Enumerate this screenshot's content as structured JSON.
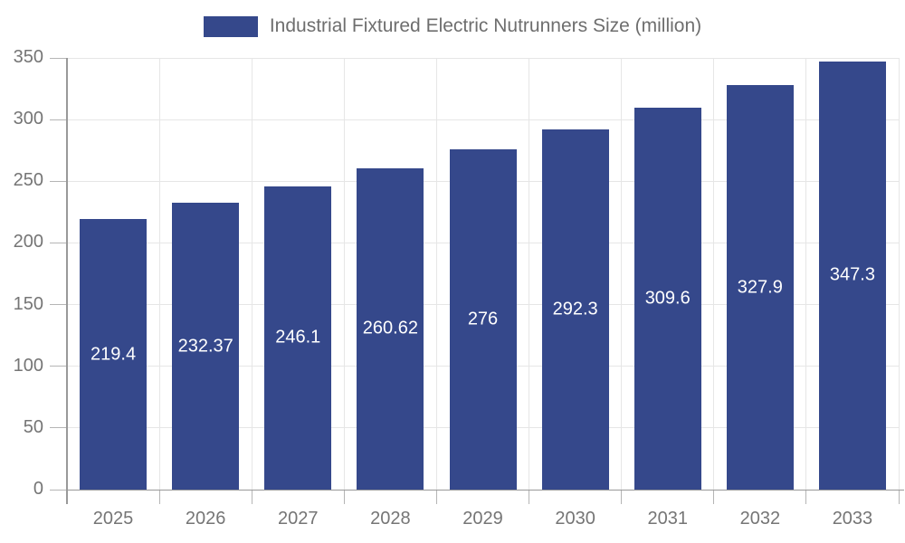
{
  "legend": {
    "label": "Industrial Fixtured Electric Nutrunners Size (million)"
  },
  "chart_data": {
    "type": "bar",
    "title": "Industrial Fixtured Electric Nutrunners Size (million)",
    "categories": [
      "2025",
      "2026",
      "2027",
      "2028",
      "2029",
      "2030",
      "2031",
      "2032",
      "2033"
    ],
    "values": [
      219.4,
      232.37,
      246.1,
      260.62,
      276,
      292.3,
      309.6,
      327.9,
      347.3
    ],
    "value_labels": [
      "219.4",
      "232.37",
      "246.1",
      "260.62",
      "276",
      "292.3",
      "309.6",
      "327.9",
      "347.3"
    ],
    "xlabel": "",
    "ylabel": "",
    "ylim": [
      0,
      350
    ],
    "yticks": [
      0,
      50,
      100,
      150,
      200,
      250,
      300,
      350
    ],
    "grid": true,
    "legend_position": "top-center",
    "colors": {
      "bar": "#35488b",
      "bar_label": "#ffffff",
      "axis_text": "#757575",
      "legend_text": "#6e6e6e",
      "grid_line": "#e6e6e6",
      "axis_line": "#999999",
      "tick_line": "#b5b5b5",
      "background": "#ffffff"
    }
  }
}
